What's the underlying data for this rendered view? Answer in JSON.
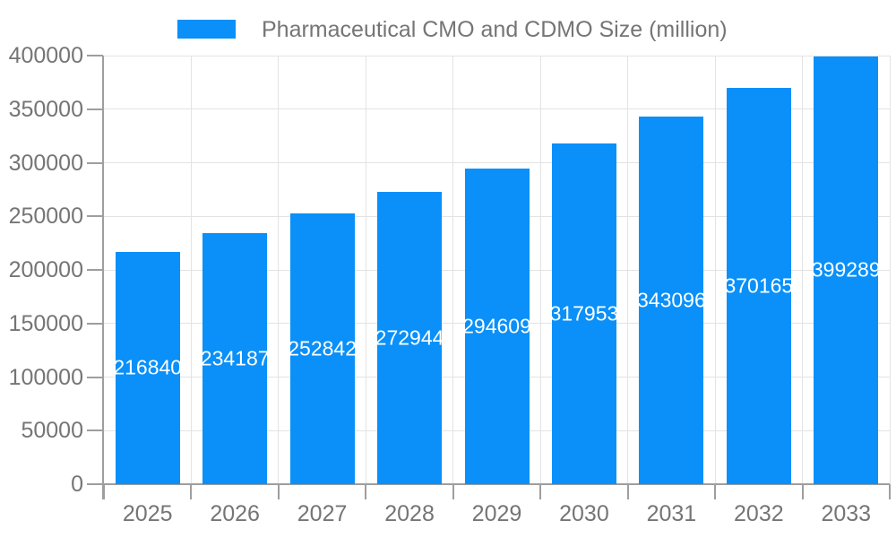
{
  "legend": {
    "label": "Pharmaceutical CMO and CDMO Size (million)"
  },
  "chart_data": {
    "type": "bar",
    "title": "Pharmaceutical CMO and CDMO Size (million)",
    "categories": [
      "2025",
      "2026",
      "2027",
      "2028",
      "2029",
      "2030",
      "2031",
      "2032",
      "2033"
    ],
    "values": [
      216840,
      234187,
      252842,
      272944,
      294609,
      317953,
      343096,
      370165,
      399289
    ],
    "value_labels": [
      "216840",
      "234187",
      "252842",
      "272944",
      "294609",
      "317953",
      "343096",
      "370165",
      "399289"
    ],
    "xlabel": "",
    "ylabel": "",
    "ylim": [
      0,
      400000
    ],
    "ytick_step": 50000,
    "yticks": [
      0,
      50000,
      100000,
      150000,
      200000,
      250000,
      300000,
      350000,
      400000
    ],
    "ytick_labels": [
      "0",
      "50000",
      "100000",
      "150000",
      "200000",
      "250000",
      "300000",
      "350000",
      "400000"
    ],
    "grid": true,
    "legend_position": "top",
    "colors": {
      "bar": "#0a90f8",
      "grid": "#e3e3e3",
      "axis": "#9e9e9e",
      "tick_label": "#757575",
      "value_label": "#ffffff"
    }
  }
}
